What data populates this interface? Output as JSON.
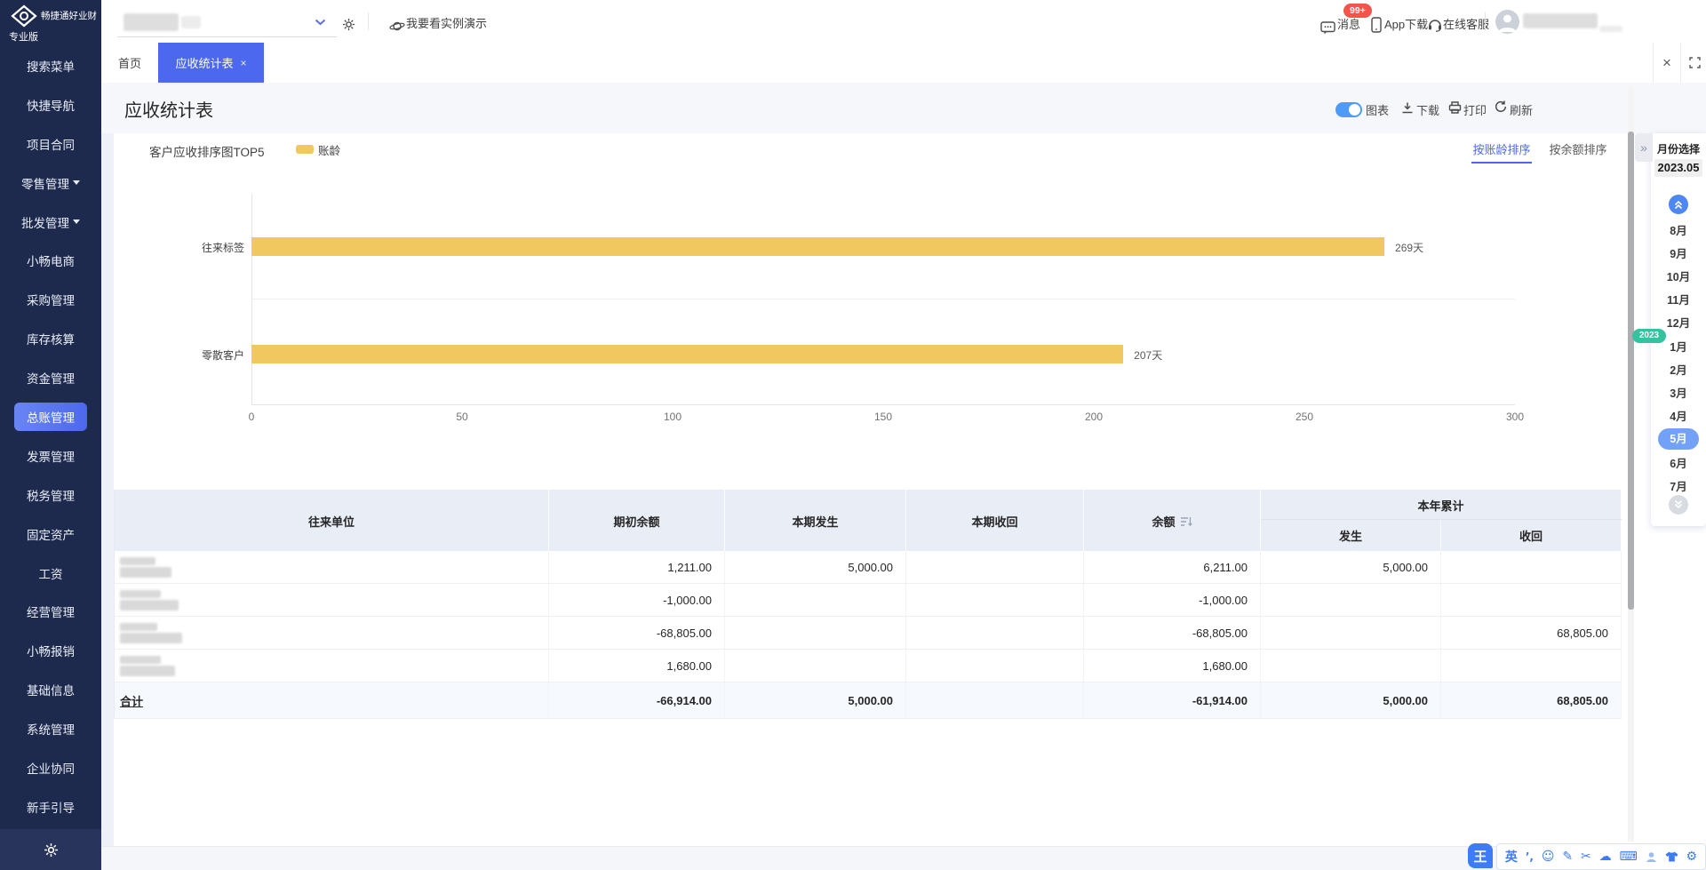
{
  "app": {
    "brand": "畅捷通好业财",
    "edition": "专业版"
  },
  "sidebar": {
    "items": [
      {
        "label": "搜索菜单"
      },
      {
        "label": "快捷导航"
      },
      {
        "label": "项目合同"
      },
      {
        "label": "零售管理",
        "arrow": true
      },
      {
        "label": "批发管理",
        "arrow": true
      },
      {
        "label": "小畅电商"
      },
      {
        "label": "采购管理"
      },
      {
        "label": "库存核算"
      },
      {
        "label": "资金管理"
      },
      {
        "label": "总账管理",
        "active": true
      },
      {
        "label": "发票管理"
      },
      {
        "label": "税务管理"
      },
      {
        "label": "固定资产"
      },
      {
        "label": "工资"
      },
      {
        "label": "经营管理"
      },
      {
        "label": "小畅报销"
      },
      {
        "label": "基础信息"
      },
      {
        "label": "系统管理"
      },
      {
        "label": "企业协同"
      },
      {
        "label": "新手引导"
      }
    ]
  },
  "topbar": {
    "demo_label": "我要看实例演示",
    "message_label": "消息",
    "message_badge": "99+",
    "app_download_label": "App下载",
    "support_label": "在线客服"
  },
  "tabbar": {
    "home_tab": "首页",
    "active_tab": "应收统计表"
  },
  "page_header": {
    "title": "应收统计表",
    "chart_toggle_label": "图表",
    "download_label": "下载",
    "print_label": "打印",
    "refresh_label": "刷新"
  },
  "chart": {
    "sort_tab_age": "按账龄排序",
    "sort_tab_balance": "按余额排序"
  },
  "chart_data": {
    "type": "bar",
    "orientation": "horizontal",
    "title": "客户应收排序图TOP5",
    "legend": [
      "账龄"
    ],
    "legend_position": "top-left",
    "categories": [
      "往来标签",
      "零散客户"
    ],
    "values": [
      269,
      207
    ],
    "value_labels": [
      "269天",
      "207天"
    ],
    "unit": "天",
    "xlabel": "",
    "ylabel": "",
    "xlim": [
      0,
      300
    ],
    "xticks": [
      0,
      50,
      100,
      150,
      200,
      250,
      300
    ],
    "bar_color": "#F1C75F",
    "grid": "category-split-line-only"
  },
  "month_panel": {
    "title": "月份选择",
    "current": "2023.05",
    "year_badge": "2023",
    "months": [
      "8月",
      "9月",
      "10月",
      "11月",
      "12月",
      "1月",
      "2月",
      "3月",
      "4月",
      "5月",
      "6月",
      "7月"
    ],
    "selected": "5月"
  },
  "table": {
    "col_company": "往来单位",
    "col_opening": "期初余额",
    "col_current": "本期发生",
    "col_received": "本期收回",
    "col_balance": "余额",
    "col_group": "本年累计",
    "col_group_occur": "发生",
    "col_group_recv": "收回",
    "rows": [
      {
        "company_blurred": true,
        "values": [
          "1,211.00",
          "5,000.00",
          "",
          "6,211.00",
          "5,000.00",
          ""
        ]
      },
      {
        "company_blurred": true,
        "values": [
          "-1,000.00",
          "",
          "",
          "-1,000.00",
          "",
          ""
        ]
      },
      {
        "company_blurred": true,
        "values": [
          "-68,805.00",
          "",
          "",
          "-68,805.00",
          "",
          "68,805.00"
        ]
      },
      {
        "company_blurred": true,
        "values": [
          "1,680.00",
          "",
          "",
          "1,680.00",
          "",
          ""
        ]
      }
    ],
    "total": {
      "label": "合计",
      "values": [
        "-66,914.00",
        "5,000.00",
        "",
        "-61,914.00",
        "5,000.00",
        "68,805.00"
      ]
    }
  },
  "ime": {
    "logo_char": "王",
    "lang_char": "英",
    "icons": [
      {
        "name": "punctuation-icon",
        "glyph": "’,"
      },
      {
        "name": "emoji-icon",
        "glyph": "☺"
      },
      {
        "name": "pencil-icon",
        "glyph": "✎"
      },
      {
        "name": "scissors-icon",
        "glyph": "✂"
      },
      {
        "name": "cloud-icon",
        "glyph": "☁"
      },
      {
        "name": "keyboard-icon",
        "glyph": "⌨"
      },
      {
        "name": "user-icon",
        "glyph": "svg:user"
      },
      {
        "name": "skin-icon",
        "glyph": "svg:shirt"
      },
      {
        "name": "settings-icon",
        "glyph": "⚙"
      }
    ]
  },
  "colors": {
    "accent_blue": "#4B68EF",
    "toggle_blue": "#4D9BF6",
    "bar_yellow": "#F1C75F",
    "badge_red": "#F5544C",
    "year_green": "#34C39E",
    "sidebar_navy": "#1E2A4D",
    "selected_month_blue": "#72A1F7",
    "table_header_bg": "#E9EDF6"
  }
}
